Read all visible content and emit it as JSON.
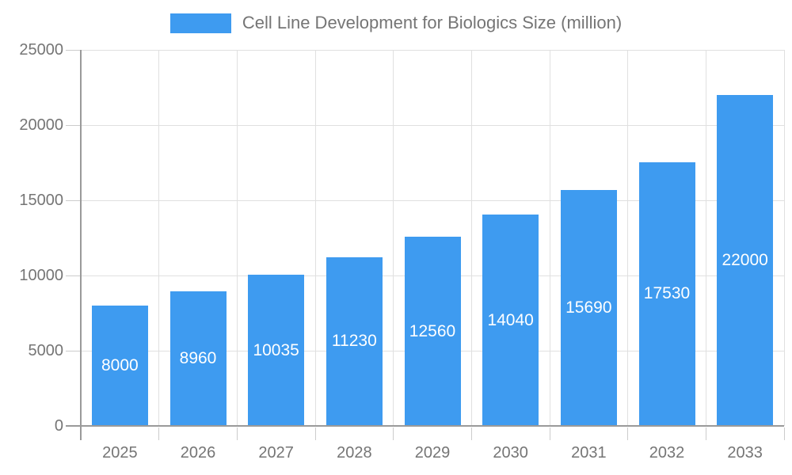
{
  "legend": {
    "label": "Cell Line Development for Biologics Size (million)"
  },
  "colors": {
    "bar": "#3E9BF0",
    "grid": "#E0E0E0",
    "axis": "#9A9A9A",
    "tick": "#CCCCCC",
    "axis_text": "#757575",
    "value_text": "#FFFFFF",
    "background": "#FFFFFF"
  },
  "chart_data": {
    "type": "bar",
    "title": "Cell Line Development for Biologics Size (million)",
    "categories": [
      "2025",
      "2026",
      "2027",
      "2028",
      "2029",
      "2030",
      "2031",
      "2032",
      "2033"
    ],
    "values": [
      8000,
      8960,
      10035,
      11230,
      12560,
      14040,
      15690,
      17530,
      22000
    ],
    "series_name": "Cell Line Development for Biologics Size (million)",
    "xlabel": "",
    "ylabel": "",
    "ylim": [
      0,
      25000
    ],
    "yticks": [
      0,
      5000,
      10000,
      15000,
      20000,
      25000
    ],
    "grid": true,
    "legend_position": "top",
    "value_label_position": "inside-center"
  }
}
